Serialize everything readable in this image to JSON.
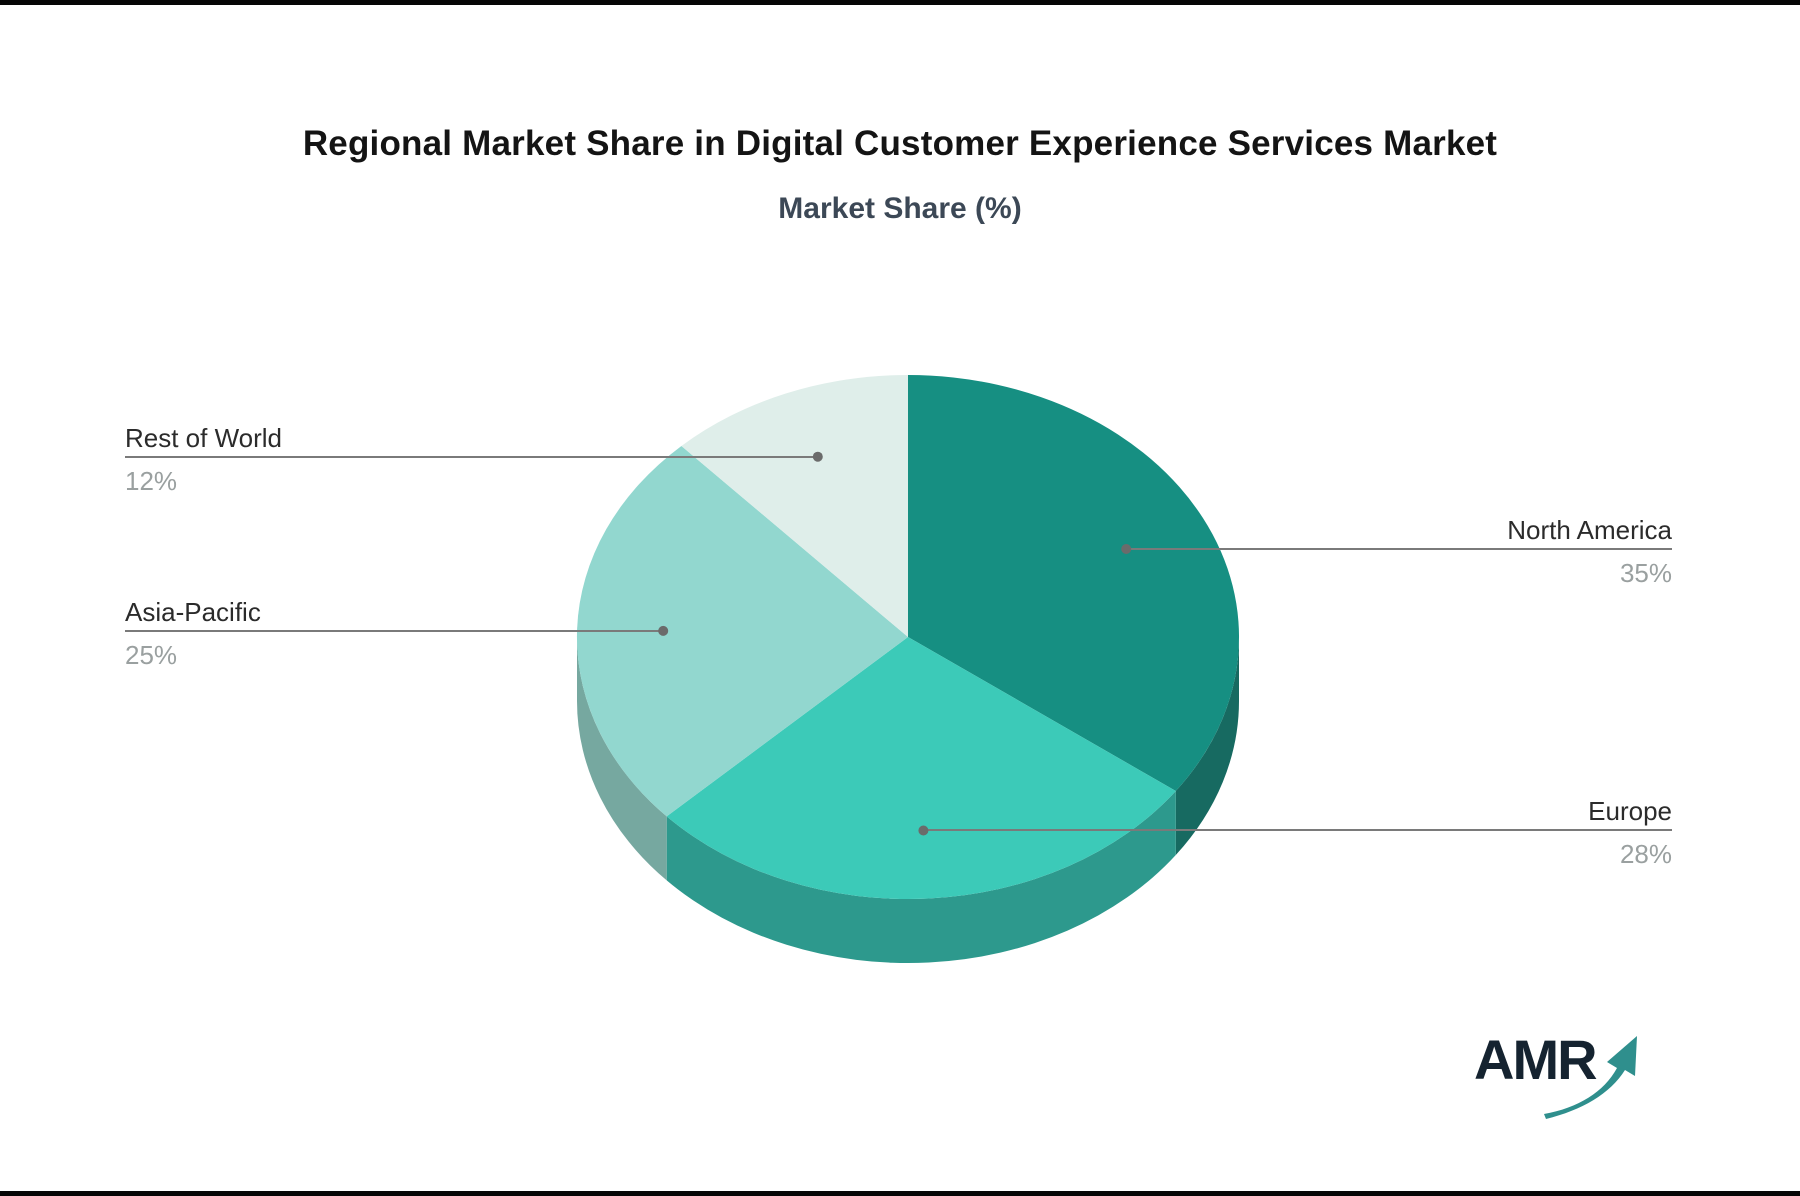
{
  "header": {
    "title": "Regional Market Share in Digital Customer Experience Services Market",
    "subtitle": "Market Share (%)"
  },
  "chart_data": {
    "type": "pie",
    "style": "3d",
    "title": "Regional Market Share in Digital Customer Experience Services Market",
    "subtitle": "Market Share (%)",
    "unit": "%",
    "direction": "clockwise",
    "start_angle_deg": 0,
    "legend": "none",
    "categories": [
      "North America",
      "Europe",
      "Asia-Pacific",
      "Rest of World"
    ],
    "values": [
      35,
      28,
      25,
      12
    ],
    "slices": [
      {
        "label": "North America",
        "value": 35,
        "display": "35%",
        "color_top": "#168f82",
        "color_side": "#176a61",
        "callout_side": "right"
      },
      {
        "label": "Europe",
        "value": 28,
        "display": "28%",
        "color_top": "#3ccab8",
        "color_side": "#2d998d",
        "callout_side": "right"
      },
      {
        "label": "Asia-Pacific",
        "value": 25,
        "display": "25%",
        "color_top": "#92d7cf",
        "color_side": "#76a8a0",
        "callout_side": "left"
      },
      {
        "label": "Rest of World",
        "value": 12,
        "display": "12%",
        "color_top": "#dfeeea",
        "color_side": "#c3d6d2",
        "callout_side": "left"
      }
    ],
    "label_text_color": "#2b2b2b",
    "value_text_color": "#9aa0a0",
    "leader_line_color": "#7a7a7a",
    "leader_dot_color": "#6b6b6b"
  },
  "logo": {
    "text": "AMR",
    "text_color": "#152330",
    "arrow_color": "#2f8f8d"
  },
  "frame": {
    "color": "#060606"
  }
}
